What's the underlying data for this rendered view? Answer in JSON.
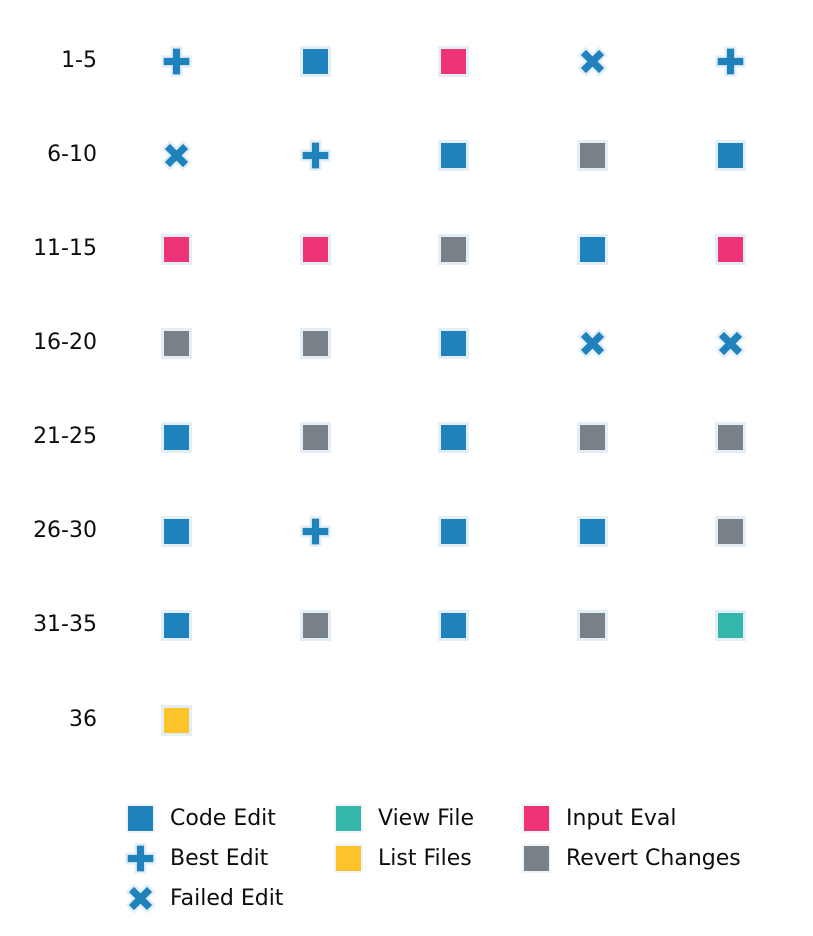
{
  "chart_data": {
    "type": "scatter",
    "title": "",
    "xlabel": "",
    "ylabel": "",
    "grid": false,
    "background": "#ffffff",
    "row_categories": [
      "1-5",
      "6-10",
      "11-15",
      "16-20",
      "21-25",
      "26-30",
      "31-35",
      "36"
    ],
    "rows": [
      {
        "label": "1-5",
        "markers": [
          "best_edit",
          "code_edit",
          "input_eval",
          "failed_edit",
          "best_edit"
        ]
      },
      {
        "label": "6-10",
        "markers": [
          "failed_edit",
          "best_edit",
          "code_edit",
          "revert_changes",
          "code_edit"
        ]
      },
      {
        "label": "11-15",
        "markers": [
          "input_eval",
          "input_eval",
          "revert_changes",
          "code_edit",
          "input_eval"
        ]
      },
      {
        "label": "16-20",
        "markers": [
          "revert_changes",
          "revert_changes",
          "code_edit",
          "failed_edit",
          "failed_edit"
        ]
      },
      {
        "label": "21-25",
        "markers": [
          "code_edit",
          "revert_changes",
          "code_edit",
          "revert_changes",
          "revert_changes"
        ]
      },
      {
        "label": "26-30",
        "markers": [
          "code_edit",
          "best_edit",
          "code_edit",
          "code_edit",
          "revert_changes"
        ]
      },
      {
        "label": "31-35",
        "markers": [
          "code_edit",
          "revert_changes",
          "code_edit",
          "revert_changes",
          "view_file"
        ]
      },
      {
        "label": "36",
        "markers": [
          "list_files"
        ]
      }
    ],
    "legend_items": [
      {
        "key": "code_edit",
        "label": "Code Edit",
        "shape": "square",
        "color": "#1f82bd"
      },
      {
        "key": "best_edit",
        "label": "Best Edit",
        "shape": "plus",
        "color": "#1f82bd"
      },
      {
        "key": "failed_edit",
        "label": "Failed Edit",
        "shape": "x",
        "color": "#1f82bd"
      },
      {
        "key": "view_file",
        "label": "View File",
        "shape": "square",
        "color": "#35b6ab"
      },
      {
        "key": "list_files",
        "label": "List Files",
        "shape": "square",
        "color": "#fdc32b"
      },
      {
        "key": "input_eval",
        "label": "Input Eval",
        "shape": "square",
        "color": "#ee3377"
      },
      {
        "key": "revert_changes",
        "label": "Revert Changes",
        "shape": "square",
        "color": "#7a8087"
      }
    ],
    "legend_layout": {
      "position": "bottom",
      "columns_by_item_index": [
        [
          0,
          1,
          2
        ],
        [
          3,
          4
        ],
        [
          5,
          6
        ]
      ]
    },
    "marker_edge_color": "#e4eef6"
  }
}
